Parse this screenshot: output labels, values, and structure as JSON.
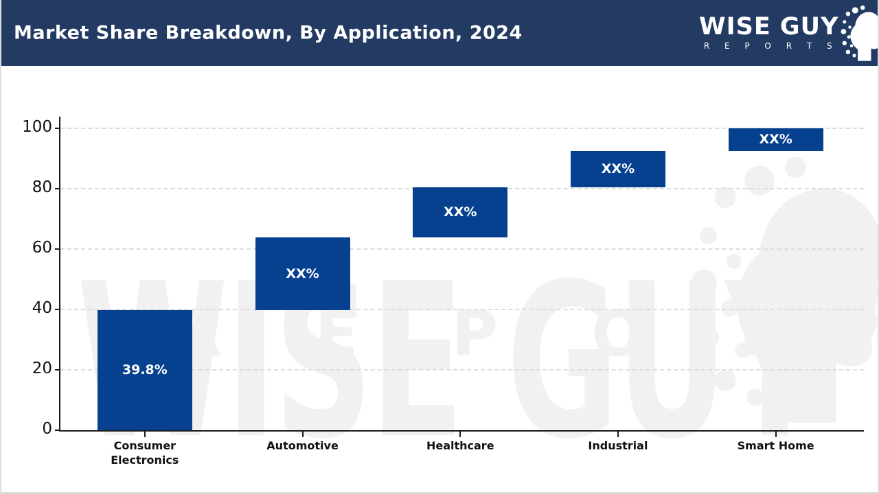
{
  "header": {
    "title": "Market Share Breakdown, By Application, 2024",
    "logo": {
      "line1": "WISE GUY",
      "line2": "R E P O R T S"
    },
    "background_color": "#233a63"
  },
  "watermark": {
    "line1": "WISE GUY",
    "line2": "R E P O R T S"
  },
  "chart_data": {
    "type": "bar",
    "subtype": "waterfall-floating-bars",
    "title": "Market Share Breakdown, By Application, 2024",
    "xlabel": "",
    "ylabel": "",
    "categories": [
      "Consumer\nElectronics",
      "Automotive",
      "Healthcare",
      "Industrial",
      "Smart Home"
    ],
    "bar_labels": [
      "39.8%",
      "XX%",
      "XX%",
      "XX%",
      "XX%"
    ],
    "values_pct_estimated": [
      39.8,
      24.1,
      16.5,
      12.0,
      7.6
    ],
    "segments": [
      {
        "category": "Consumer\nElectronics",
        "start": 0,
        "end": 39.8,
        "label": "39.8%"
      },
      {
        "category": "Automotive",
        "start": 39.8,
        "end": 63.9,
        "label": "XX%"
      },
      {
        "category": "Healthcare",
        "start": 63.9,
        "end": 80.4,
        "label": "XX%"
      },
      {
        "category": "Industrial",
        "start": 80.4,
        "end": 92.4,
        "label": "XX%"
      },
      {
        "category": "Smart Home",
        "start": 92.4,
        "end": 100.0,
        "label": "XX%"
      }
    ],
    "yticks": [
      0,
      20,
      40,
      60,
      80,
      100
    ],
    "ylim": [
      0,
      104
    ],
    "grid": "horizontal-dashed",
    "legend": "none",
    "bar_color": "#05418f",
    "label_color": "#ffffff"
  }
}
